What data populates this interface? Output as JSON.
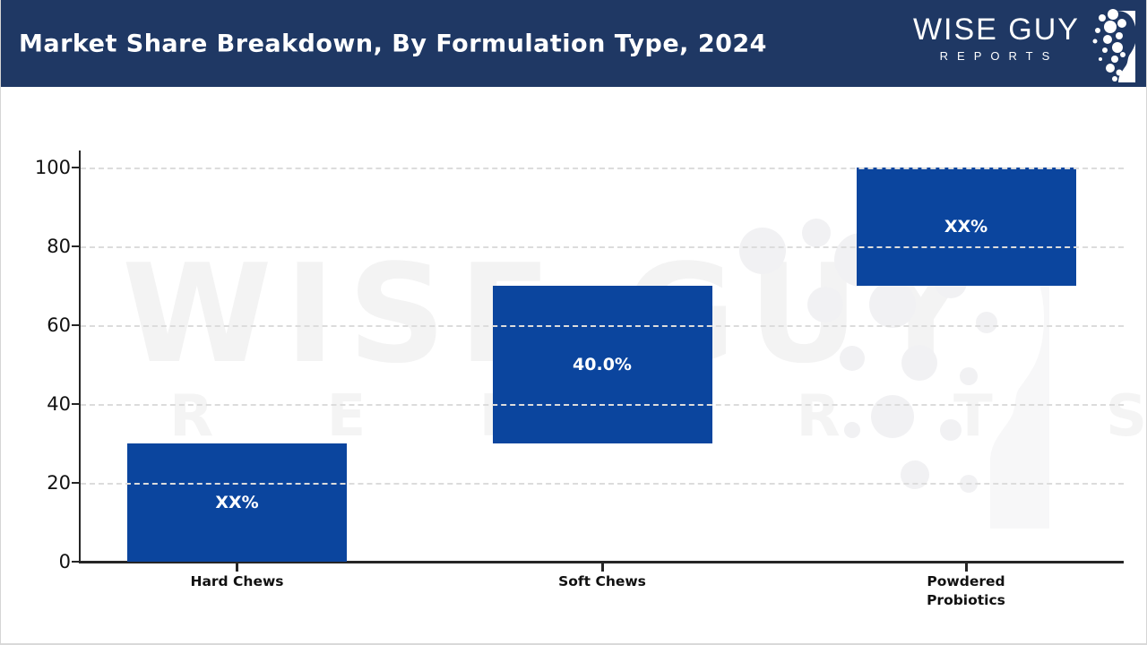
{
  "header": {
    "title": "Market Share Breakdown, By Formulation Type, 2024",
    "logo": {
      "line1": "WISE GUY",
      "line2": "REPORTS"
    }
  },
  "watermark": {
    "line1": "WISE GUY",
    "line2": "R E P O R T S"
  },
  "chart_data": {
    "type": "bar",
    "subtype": "floating-segment-bars",
    "title": "Market Share Breakdown, By Formulation Type, 2024",
    "xlabel": "",
    "ylabel": "",
    "categories": [
      "Hard Chews",
      "Soft Chews",
      "Powdered Probiotics"
    ],
    "segments": [
      {
        "category": "Hard Chews",
        "start": 0,
        "end": 30,
        "label": "XX%"
      },
      {
        "category": "Soft Chews",
        "start": 30,
        "end": 70,
        "label": "40.0%"
      },
      {
        "category": "Powdered Probiotics",
        "start": 70,
        "end": 100,
        "label": "XX%"
      }
    ],
    "yticks": [
      0,
      20,
      40,
      60,
      80,
      100
    ],
    "ylim": [
      0,
      104
    ],
    "grid": "dashed horizontal",
    "legend": "none",
    "bar_color": "#0b459e",
    "label_color": "#ffffff",
    "header_color": "#1f3864"
  }
}
